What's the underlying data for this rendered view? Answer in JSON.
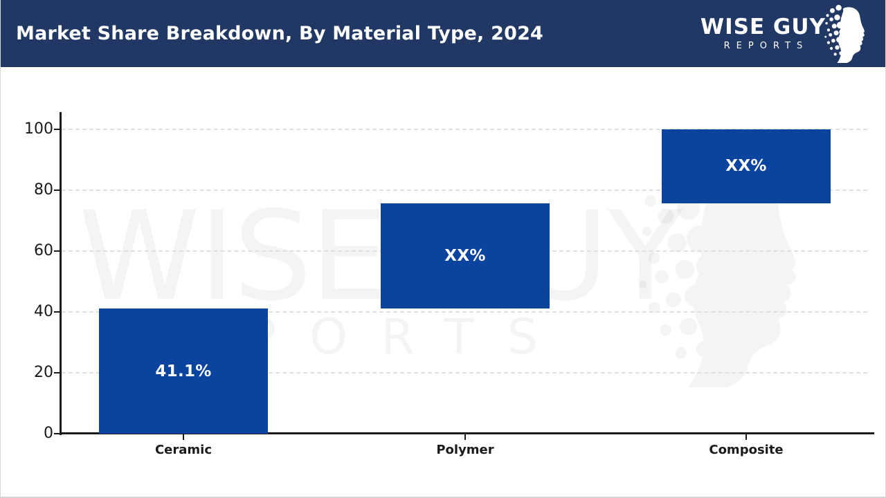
{
  "header": {
    "title": "Market Share Breakdown, By Material Type, 2024",
    "logo": {
      "line1": "WISE GUY",
      "line2": "REPORTS"
    }
  },
  "watermark": {
    "line1": "WISE GUY",
    "line2": "REPORTS"
  },
  "colors": {
    "header_bg": "#213764",
    "bar": "#0A449E",
    "grid": "#dfdfdf",
    "axis": "#1a1a1a"
  },
  "chart_data": {
    "type": "bar",
    "subtype": "floating-segment-waterfall",
    "title": "Market Share Breakdown, By Material Type, 2024",
    "categories": [
      "Ceramic",
      "Polymer",
      "Composite"
    ],
    "segments": [
      {
        "category": "Ceramic",
        "start": 0,
        "end": 41.1,
        "size": 41.1,
        "label": "41.1%"
      },
      {
        "category": "Polymer",
        "start": 41.1,
        "end": 75.7,
        "size": 34.6,
        "label": "XX%"
      },
      {
        "category": "Composite",
        "start": 75.7,
        "end": 100,
        "size": 24.3,
        "label": "XX%"
      }
    ],
    "xlabel": "",
    "ylabel": "",
    "ylim": [
      0,
      100
    ],
    "yticks": [
      0,
      20,
      40,
      60,
      80,
      100
    ],
    "grid": "horizontal-dashed",
    "legend": "none",
    "bar_color": "#0A449E"
  }
}
